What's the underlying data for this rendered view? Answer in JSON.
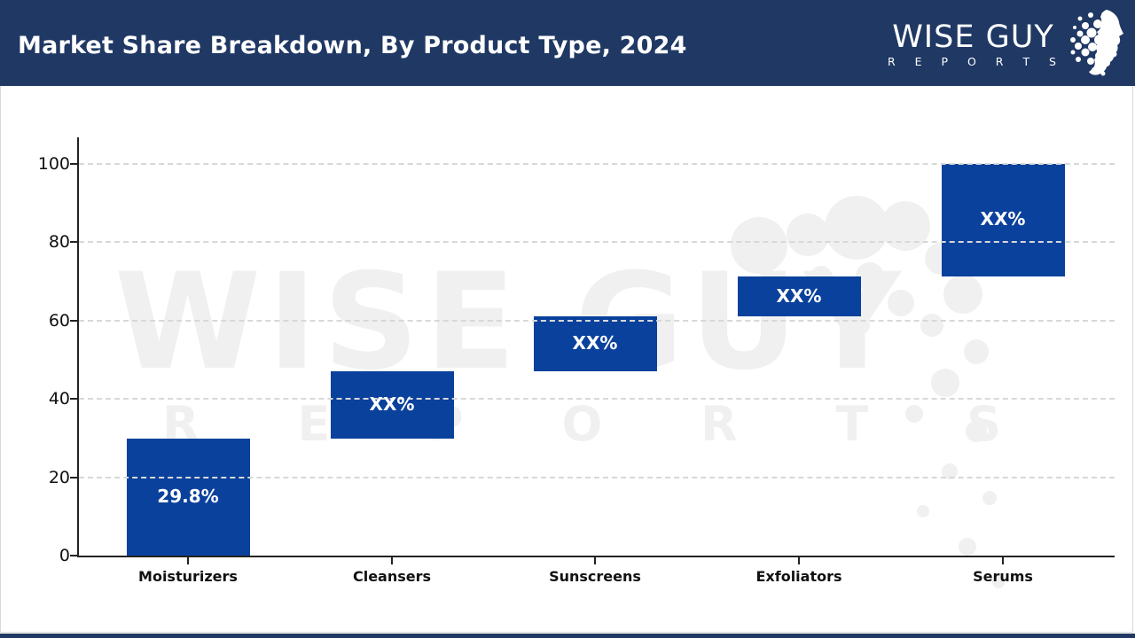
{
  "header": {
    "title": "Market Share Breakdown, By Product Type, 2024",
    "logo": {
      "line1": "WISE GUY",
      "line2": "R E P O R T S"
    }
  },
  "watermark": {
    "line1": "WISE GUY",
    "line2": "R E P O R T S"
  },
  "colors": {
    "brand_navy": "#1f3864",
    "bar_blue": "#0a419c",
    "grid_gray": "#d8d8d8",
    "axis_black": "#232323",
    "watermark_gray": "#f0f0f0"
  },
  "chart_data": {
    "type": "bar",
    "subtype": "waterfall",
    "title": "Market Share Breakdown, By Product Type, 2024",
    "categories": [
      "Moisturizers",
      "Cleansers",
      "Sunscreens",
      "Exfoliators",
      "Serums"
    ],
    "bars": [
      {
        "category": "Moisturizers",
        "start": 0,
        "end": 29.8,
        "label": "29.8%"
      },
      {
        "category": "Cleansers",
        "start": 29.9,
        "end": 47.0,
        "label": "XX%"
      },
      {
        "category": "Sunscreens",
        "start": 47.0,
        "end": 61.0,
        "label": "XX%"
      },
      {
        "category": "Exfoliators",
        "start": 61.0,
        "end": 71.3,
        "label": "XX%"
      },
      {
        "category": "Serums",
        "start": 71.3,
        "end": 100.0,
        "label": "XX%"
      }
    ],
    "yticks": [
      0,
      20,
      40,
      60,
      80,
      100
    ],
    "ylim": [
      0,
      107
    ],
    "grid": "horizontal-dashed",
    "grid_above_bars": true,
    "legend": "none",
    "xlabel": "",
    "ylabel": ""
  }
}
